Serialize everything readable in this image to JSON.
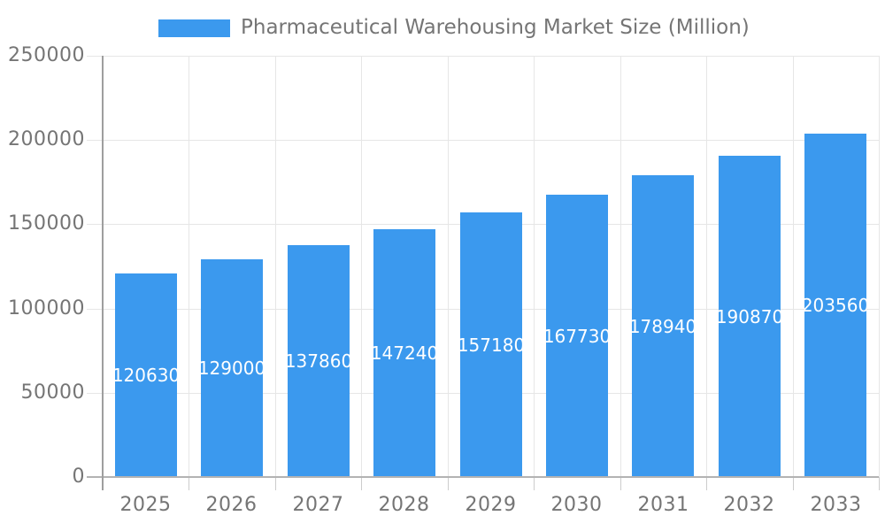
{
  "legend": {
    "label": "Pharmaceutical Warehousing Market Size (Million)",
    "swatch_color": "#3b99ee",
    "position": "top"
  },
  "chart_data": {
    "type": "bar",
    "title": "Pharmaceutical Warehousing Market Size (Million)",
    "categories": [
      "2025",
      "2026",
      "2027",
      "2028",
      "2029",
      "2030",
      "2031",
      "2032",
      "2033"
    ],
    "values": [
      120630,
      129000,
      137860,
      147240,
      157180,
      167730,
      178940,
      190870,
      203560
    ],
    "bar_labels": [
      "120630",
      "129000",
      "137860",
      "147240",
      "157180",
      "167730",
      "178940",
      "190870",
      "203560"
    ],
    "xlabel": "",
    "ylabel": "",
    "ylim": [
      0,
      250000
    ],
    "yticks": [
      0,
      50000,
      100000,
      150000,
      200000,
      250000
    ],
    "ytick_labels": [
      "0",
      "50000",
      "100000",
      "150000",
      "200000",
      "250000"
    ],
    "grid": true,
    "legend_position": "top"
  },
  "colors": {
    "background": "#ffffff",
    "bar": "#3b99ee",
    "data_label": "#ffffff",
    "axis_text": "#757575",
    "legend_text": "#757575",
    "gridline": "#e6e6e6",
    "x_axis_line": "#b3b3b3",
    "y_axis_line": "#9e9e9e",
    "boundary_tick": "#cccccc"
  }
}
